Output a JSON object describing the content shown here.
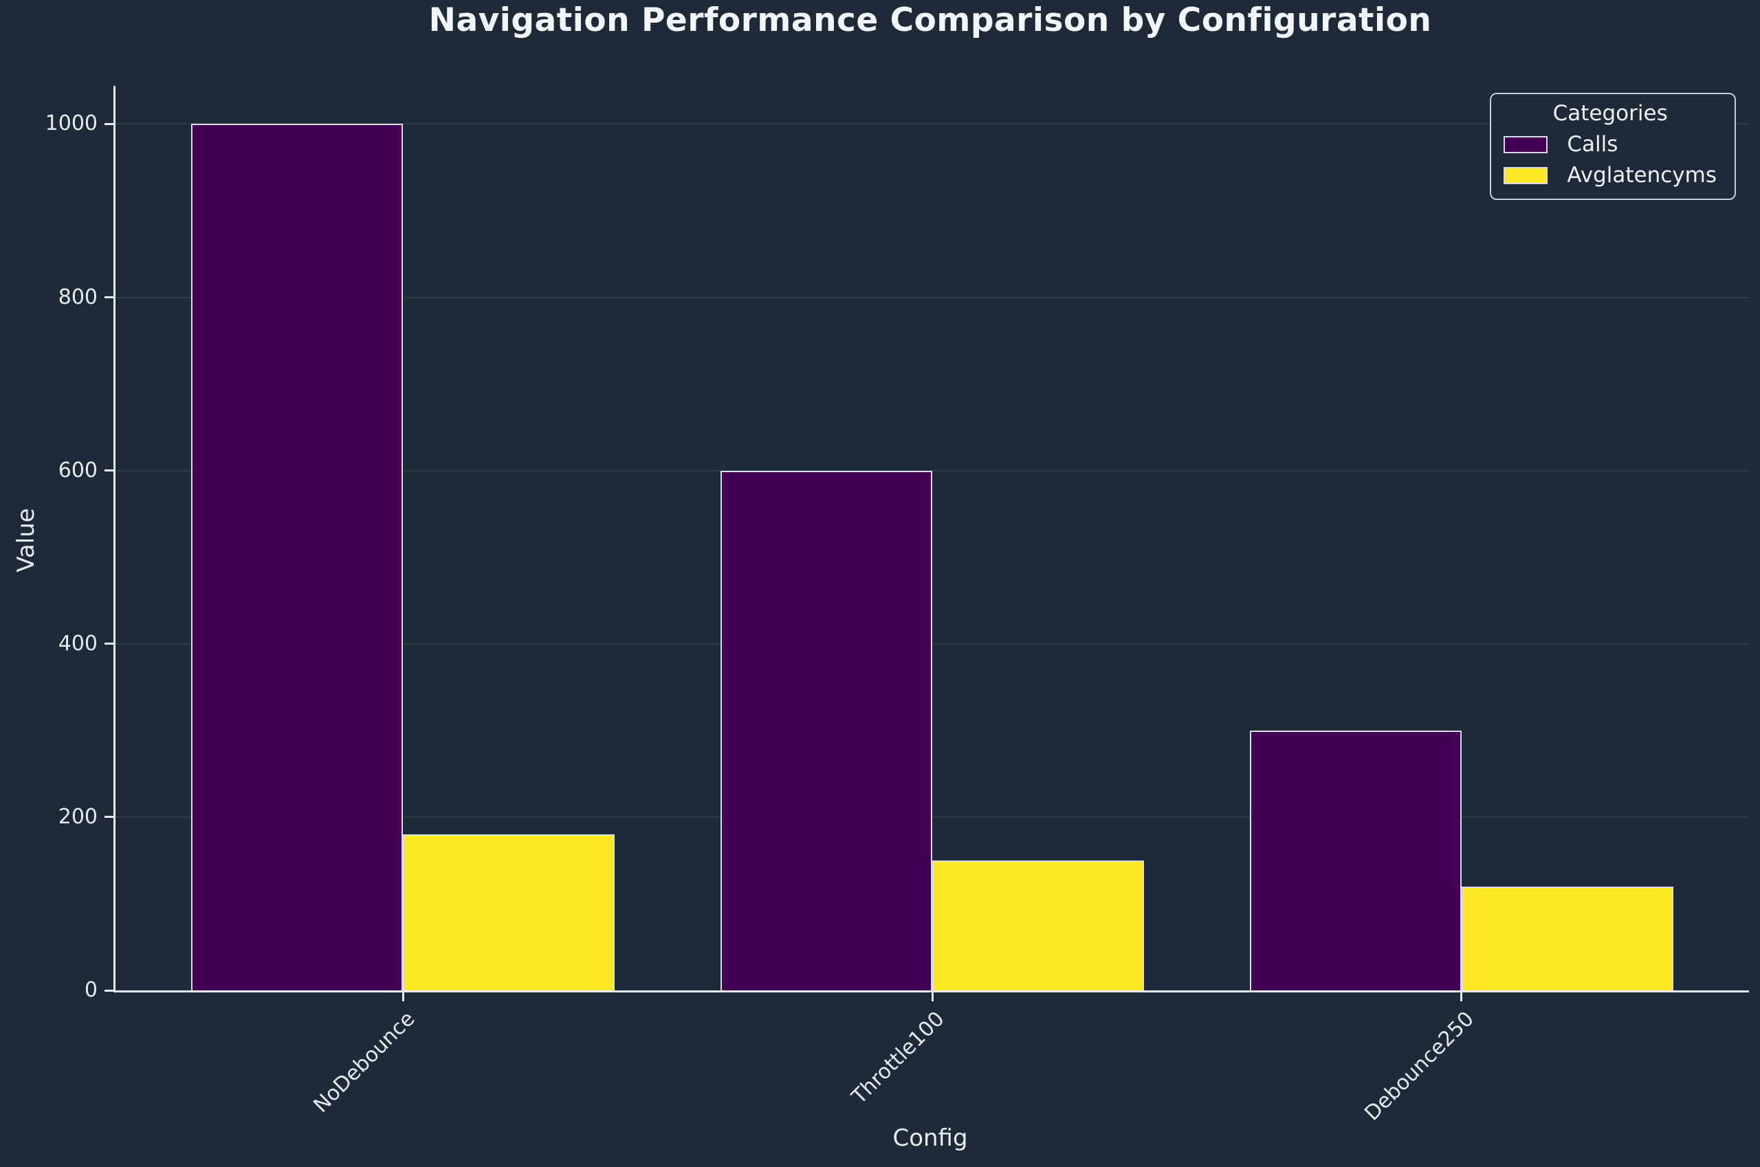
{
  "chart_data": {
    "type": "bar",
    "title": "Navigation Performance Comparison by Configuration",
    "xlabel": "Config",
    "ylabel": "Value",
    "categories": [
      "NoDebounce",
      "Throttle100",
      "Debounce250"
    ],
    "series": [
      {
        "name": "Calls",
        "color": "#440154",
        "values": [
          1000,
          600,
          300
        ]
      },
      {
        "name": "Avglatencyms",
        "color": "#fde725",
        "values": [
          180,
          150,
          120
        ]
      }
    ],
    "yticks": [
      0,
      200,
      400,
      600,
      800,
      1000
    ],
    "ylim": [
      0,
      1044
    ],
    "xtick_rotation": 45,
    "grid": true,
    "legend": {
      "title": "Categories",
      "position": "upper right"
    },
    "colors": {
      "background": "#1e2a37",
      "text": "#e9eef5",
      "spine": "#e4e8ef",
      "bar_edge": "#d9dce3",
      "gridline": "rgba(205,218,238,0.09)"
    }
  }
}
